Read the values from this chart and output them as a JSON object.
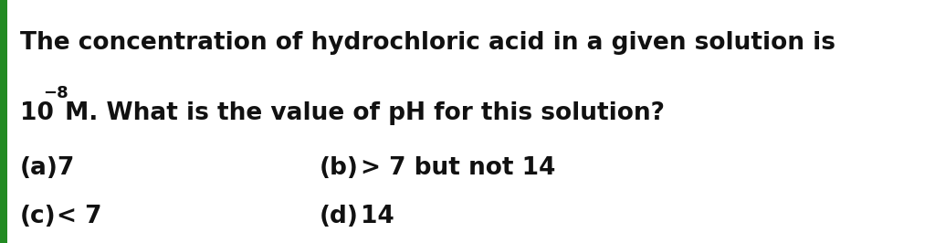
{
  "line1": "The concentration of hydrochloric acid in a given solution is",
  "line2_prefix": "10",
  "line2_superscript": "−8",
  "line2_suffix": " M. What is the value of pH for this solution?",
  "option_a_label": "(a)",
  "option_a_value": "7",
  "option_b_label": "(b)",
  "option_b_value": "> 7 but not 14",
  "option_c_label": "(c)",
  "option_c_value": "< 7",
  "option_d_label": "(d)",
  "option_d_value": "14",
  "background_color": "#ffffff",
  "text_color": "#111111",
  "left_bar_color": "#228B22",
  "font_size_body": 19,
  "font_size_super": 13,
  "font_size_options": 19
}
